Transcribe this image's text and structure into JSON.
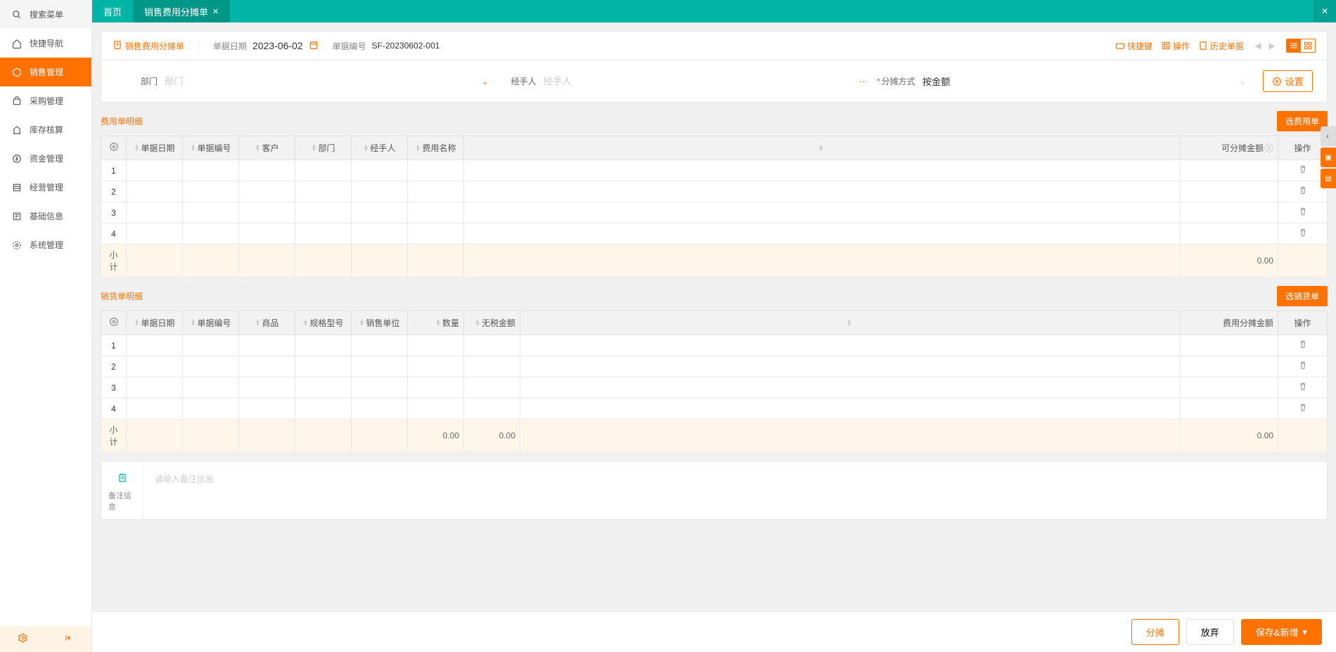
{
  "sidebar": {
    "search": "搜索菜单",
    "items": [
      {
        "label": "快捷导航",
        "icon": "home"
      },
      {
        "label": "销售管理",
        "icon": "sale",
        "active": true
      },
      {
        "label": "采购管理",
        "icon": "purchase"
      },
      {
        "label": "库存核算",
        "icon": "stock"
      },
      {
        "label": "资金管理",
        "icon": "fund"
      },
      {
        "label": "经营管理",
        "icon": "manage"
      },
      {
        "label": "基础信息",
        "icon": "base"
      },
      {
        "label": "系统管理",
        "icon": "system"
      }
    ]
  },
  "tabs": {
    "home": "首页",
    "current": "销售费用分摊单"
  },
  "header": {
    "doc_title": "销售费用分摊单",
    "date_label": "单据日期",
    "date_value": "2023-06-02",
    "code_label": "单据编号",
    "code_value": "SF-20230602-001",
    "shortcut": "快捷键",
    "operate": "操作",
    "history": "历史单据"
  },
  "form": {
    "dept_label": "部门",
    "dept_placeholder": "部门",
    "handler_label": "经手人",
    "handler_placeholder": "经手人",
    "method_label": "分摊方式",
    "method_value": "按金额",
    "setting": "设置"
  },
  "table1": {
    "title": "费用单明细",
    "select_btn": "选费用单",
    "cols": {
      "date": "单据日期",
      "code": "单据编号",
      "customer": "客户",
      "dept": "部门",
      "handler": "经手人",
      "fee_name": "费用名称",
      "amount": "可分摊金额",
      "op": "操作"
    },
    "rows": [
      "1",
      "2",
      "3",
      "4"
    ],
    "subtotal_label": "小计",
    "subtotal_amount": "0.00"
  },
  "table2": {
    "title": "销货单明细",
    "select_btn": "选销货单",
    "cols": {
      "date": "单据日期",
      "code": "单据编号",
      "product": "商品",
      "spec": "规格型号",
      "unit": "销售单位",
      "qty": "数量",
      "amount_notax": "无税金额",
      "fee_amount": "费用分摊金额",
      "op": "操作"
    },
    "rows": [
      "1",
      "2",
      "3",
      "4"
    ],
    "subtotal_label": "小计",
    "subtotal_qty": "0.00",
    "subtotal_notax": "0.00",
    "subtotal_fee": "0.00"
  },
  "remark": {
    "label": "备注信息",
    "placeholder": "请输入备注信息"
  },
  "footer": {
    "allocate": "分摊",
    "discard": "放弃",
    "save_new": "保存&新增"
  },
  "colors": {
    "primary": "#ff7200",
    "teal": "#00b5a5"
  }
}
